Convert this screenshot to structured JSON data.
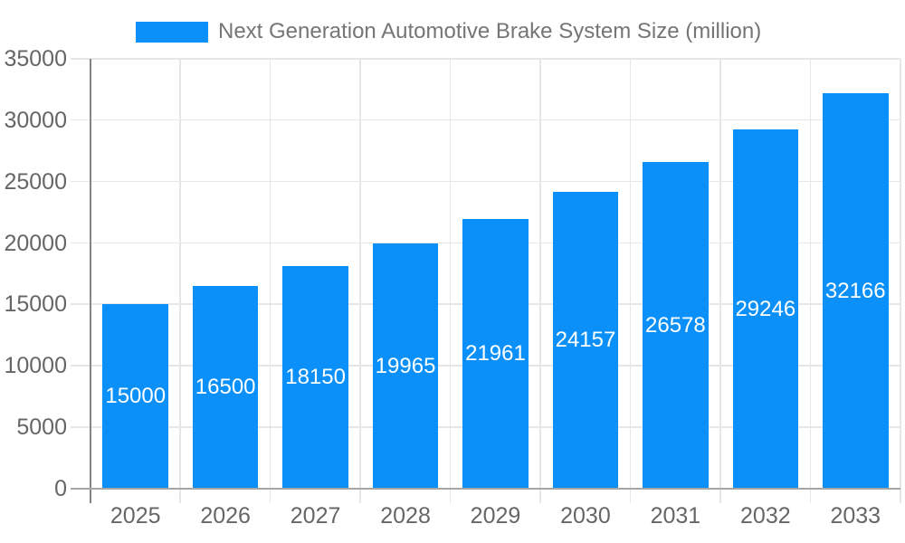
{
  "legend": {
    "label": "Next Generation Automotive Brake System Size (million)"
  },
  "chart_data": {
    "type": "bar",
    "title": "Next Generation Automotive Brake System Size (million)",
    "series_name": "Next Generation Automotive Brake System Size (million)",
    "categories": [
      "2025",
      "2026",
      "2027",
      "2028",
      "2029",
      "2030",
      "2031",
      "2032",
      "2033"
    ],
    "values": [
      15000,
      16500,
      18150,
      19965,
      21961,
      24157,
      26578,
      29246,
      32166
    ],
    "xlabel": "",
    "ylabel": "",
    "ylim": [
      0,
      35000
    ],
    "yticks": [
      0,
      5000,
      10000,
      15000,
      20000,
      25000,
      30000,
      35000
    ],
    "grid": true,
    "legend_position": "top",
    "value_label_position": "inside-center"
  },
  "colors": {
    "bar": "#0A90F8",
    "legend_text": "#757575",
    "axis_text": "#666666",
    "value_label_text": "#FFFFFF",
    "gridline": "#E6E6E6",
    "baseline": "#A6A6A6",
    "axis_line": "#848484",
    "background": "#FFFFFF"
  }
}
